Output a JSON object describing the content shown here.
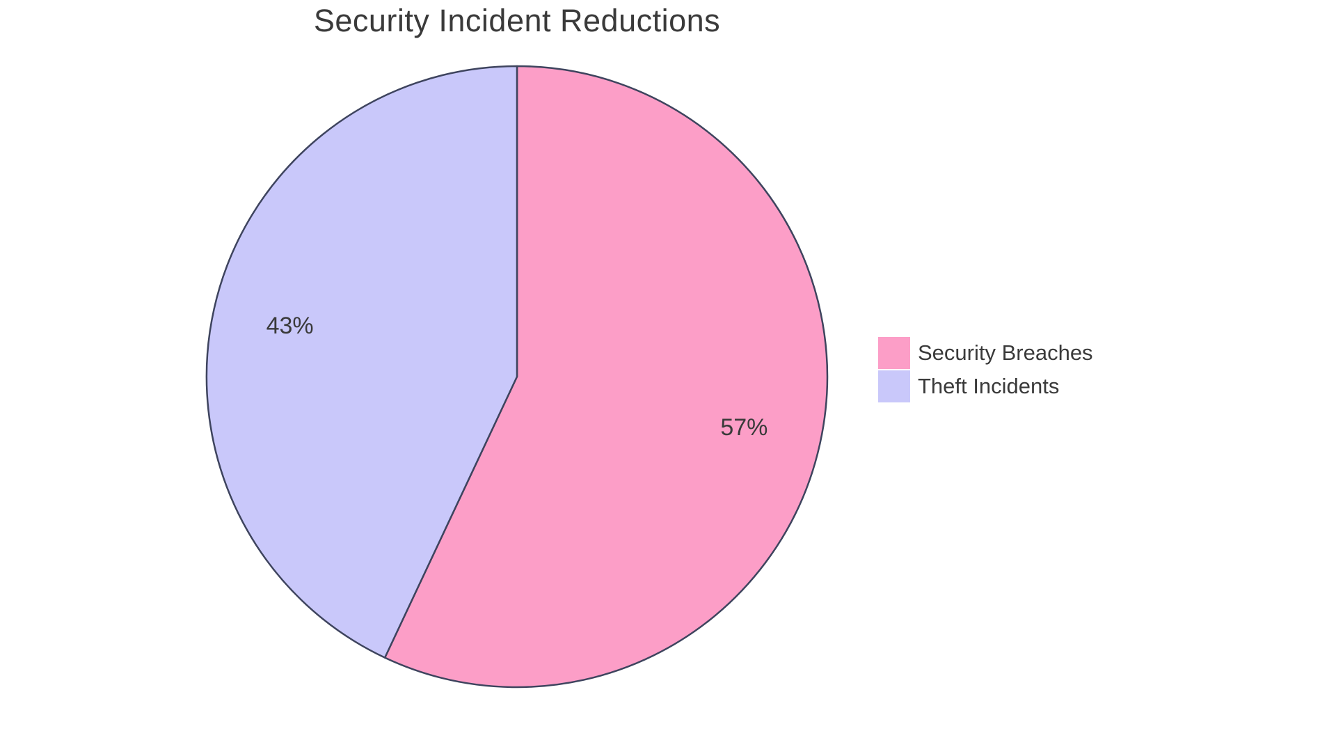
{
  "title": "Security Incident Reductions",
  "colors": {
    "background": "#FFFFFF",
    "slice_border": "#3E445E",
    "text": "#3A3A3A"
  },
  "chart_data": {
    "type": "pie",
    "title": "Security Incident Reductions",
    "labels": [
      "Security Breaches",
      "Theft Incidents"
    ],
    "values": [
      57,
      43
    ],
    "value_labels": [
      "57%",
      "43%"
    ],
    "colors": [
      "#FC9EC7",
      "#C9C8FA"
    ],
    "start_angle": "12 o'clock",
    "direction": "clockwise",
    "legend_position": "right",
    "legend_entries": [
      "Security Breaches",
      "Theft Incidents"
    ]
  }
}
